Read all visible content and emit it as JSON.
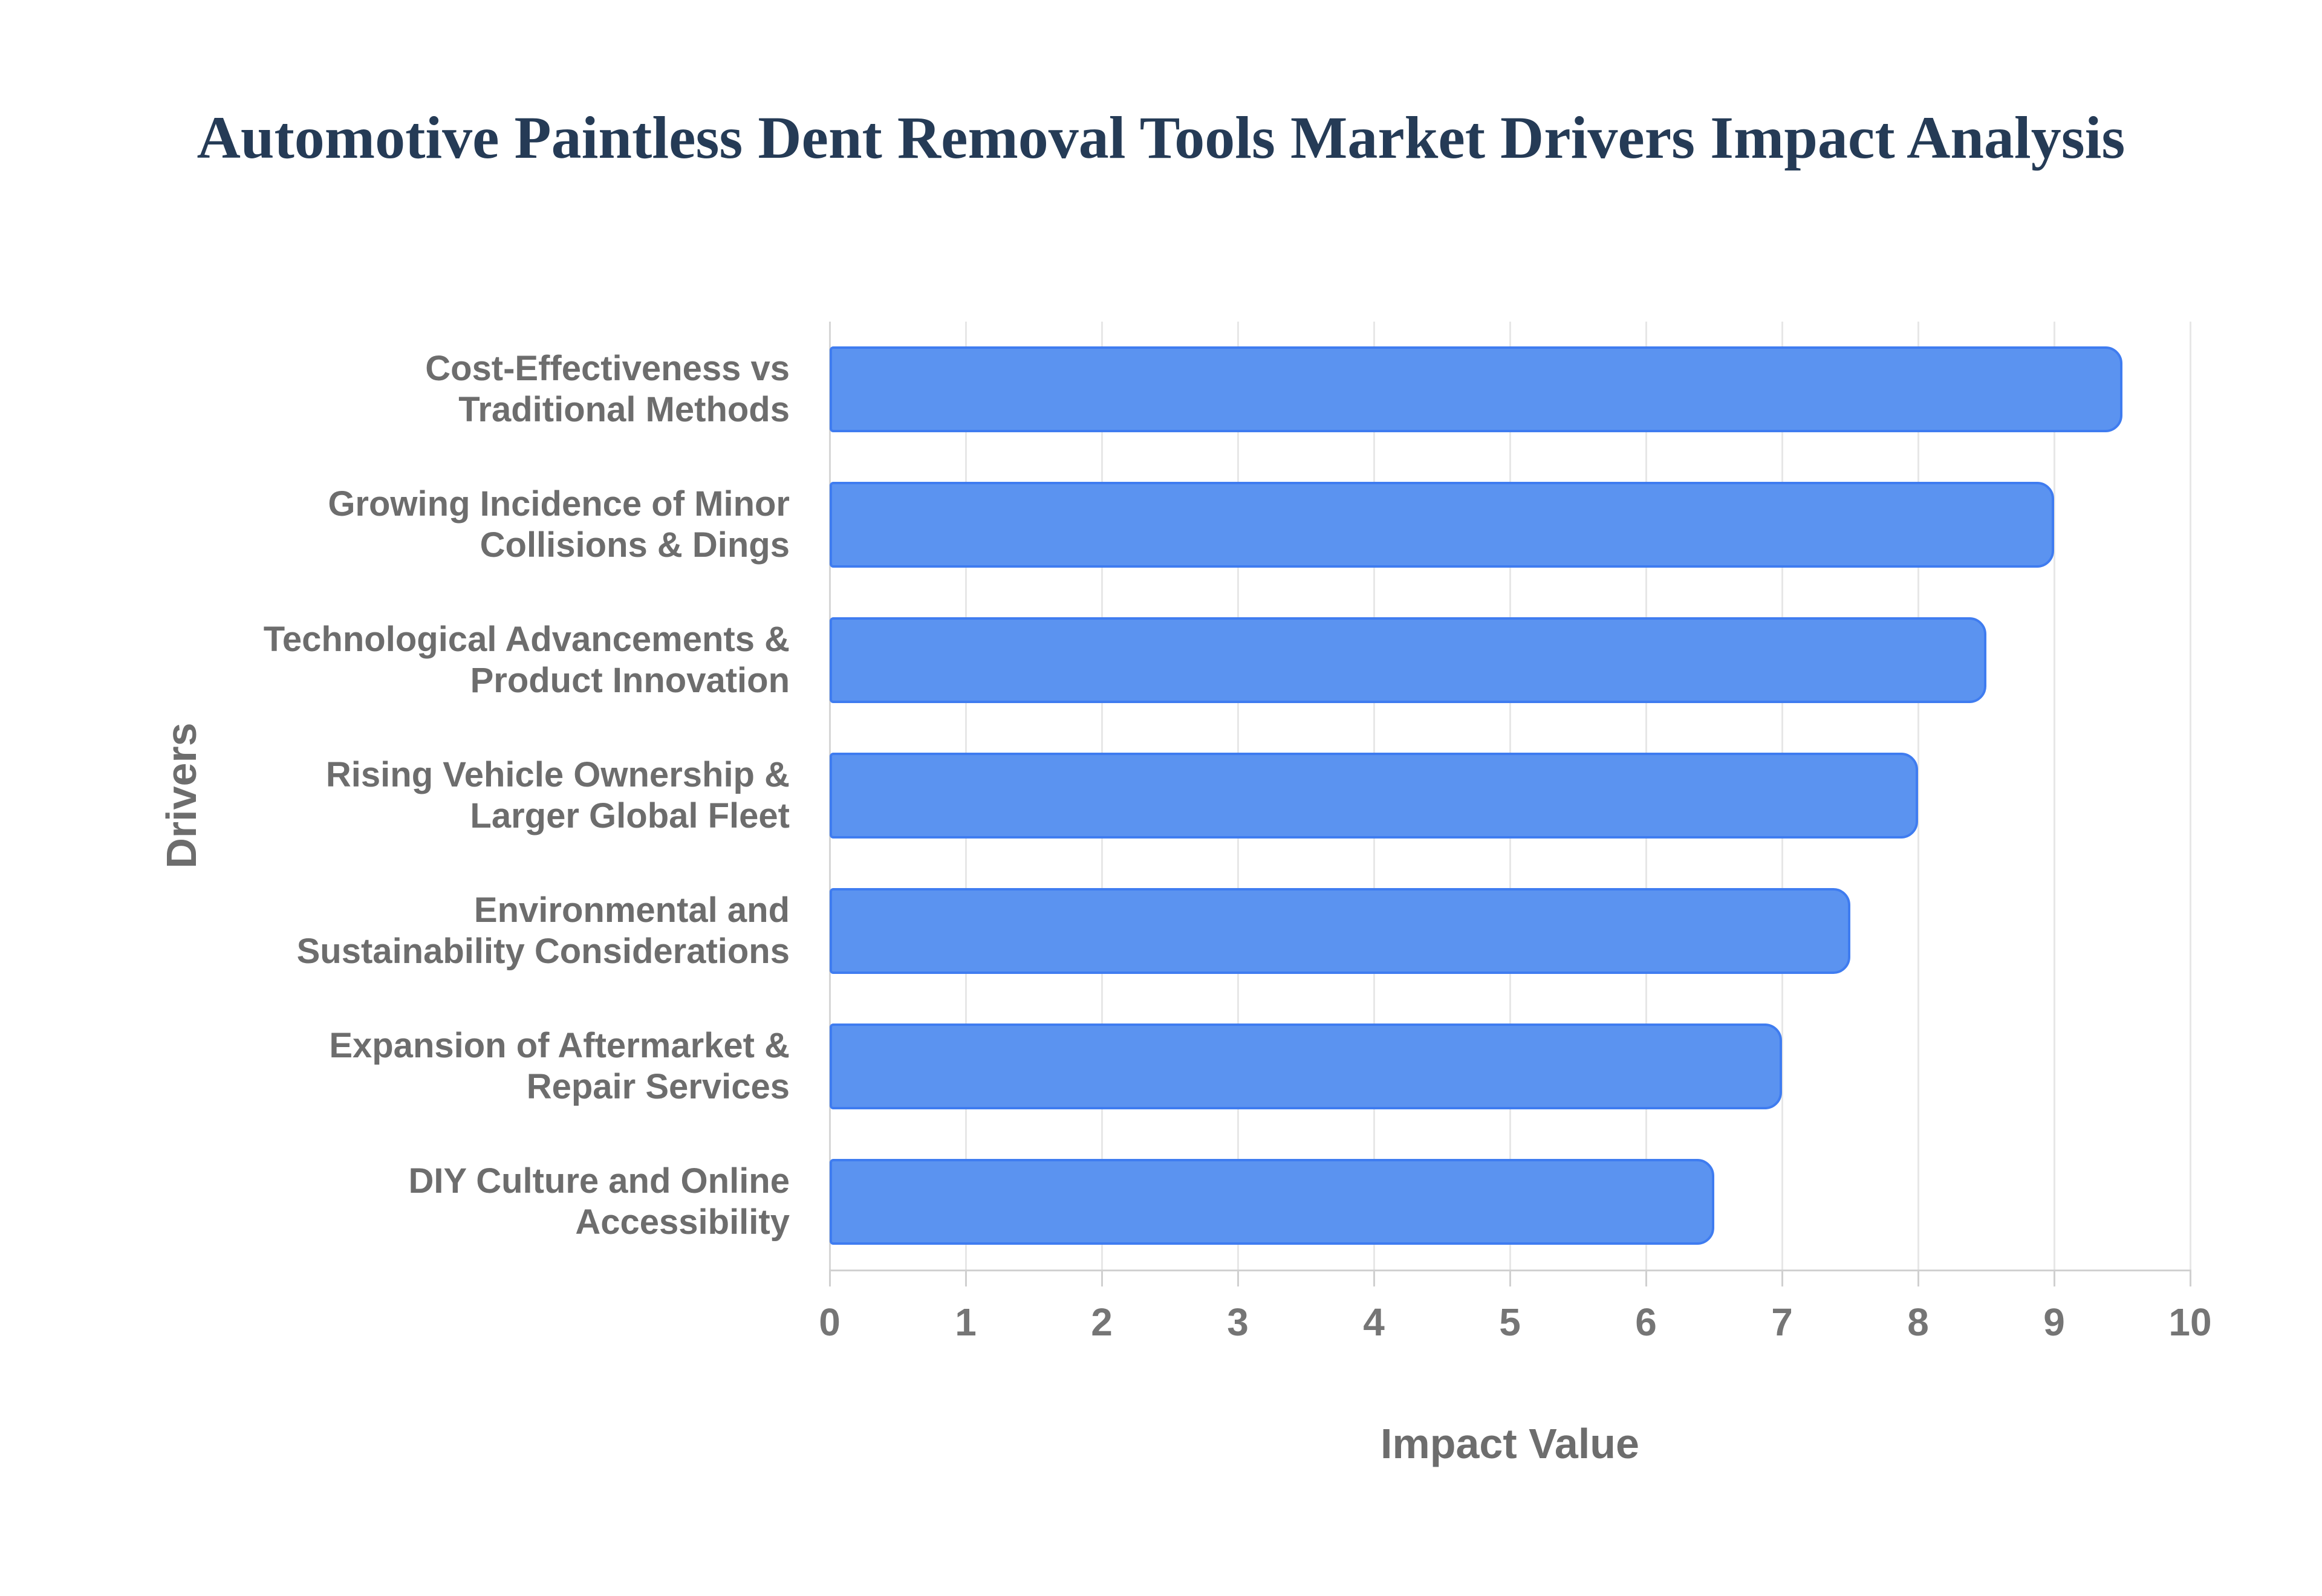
{
  "title": "Automotive Paintless Dent Removal Tools Market Drivers Impact Analysis",
  "chart_data": {
    "type": "bar",
    "orientation": "horizontal",
    "title": "Automotive Paintless Dent Removal Tools Market Drivers Impact Analysis",
    "categories": [
      "Cost-Effectiveness vs\nTraditional Methods",
      "Growing Incidence of Minor\nCollisions & Dings",
      "Technological Advancements &\nProduct Innovation",
      "Rising Vehicle Ownership &\nLarger Global Fleet",
      "Environmental and\nSustainability Considerations",
      "Expansion of Aftermarket &\nRepair Services",
      "DIY Culture and Online\nAccessibility"
    ],
    "values": [
      9.5,
      9,
      8.5,
      8,
      7.5,
      7,
      6.5
    ],
    "xlabel": "Impact Value",
    "ylabel": "Drivers",
    "xlim": [
      0,
      10
    ],
    "xticks": [
      0,
      1,
      2,
      3,
      4,
      5,
      6,
      7,
      8,
      9,
      10
    ],
    "grid": true,
    "legend": "none",
    "bar_fill_color": "#5b93f0",
    "bar_border_color": "#3f7cf0",
    "grid_color": "#e7e7e7",
    "axis_line_color": "#d0d0d0",
    "title_color": "#253b56",
    "label_color": "#6d6d6d",
    "tick_color": "#757575",
    "background_color": "#ffffff"
  }
}
